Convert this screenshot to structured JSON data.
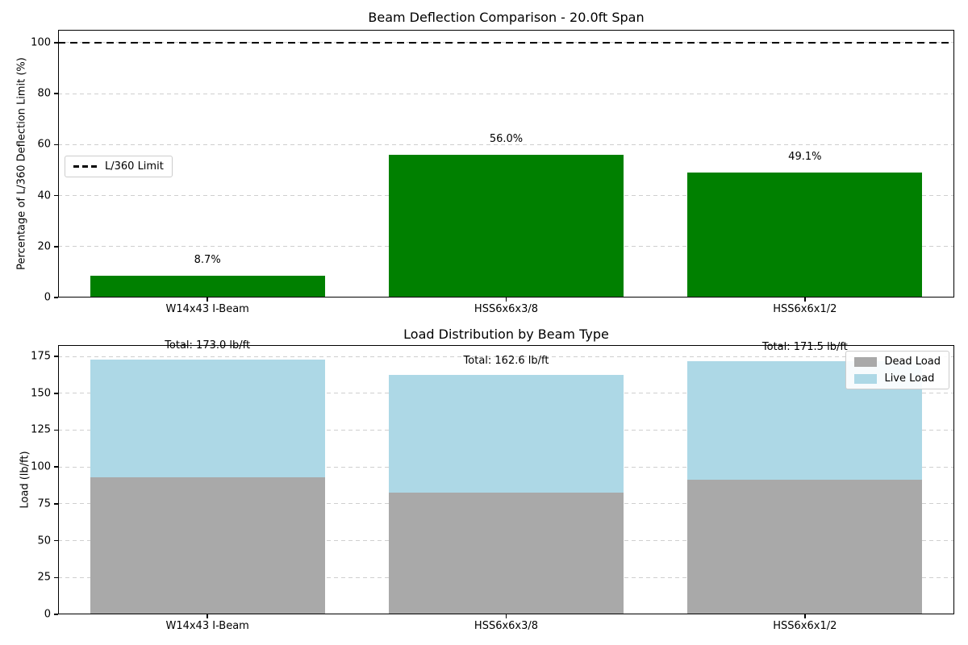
{
  "chart_data": [
    {
      "type": "bar",
      "title": "Beam Deflection Comparison - 20.0ft Span",
      "ylabel": "Percentage of L/360 Deflection Limit (%)",
      "categories": [
        "W14x43 I-Beam",
        "HSS6x6x3/8",
        "HSS6x6x1/2"
      ],
      "values": [
        8.7,
        56.0,
        49.1
      ],
      "value_labels": [
        "8.7%",
        "56.0%",
        "49.1%"
      ],
      "bar_color": "#008000",
      "ylim": [
        0,
        105
      ],
      "yticks": [
        0,
        20,
        40,
        60,
        80,
        100
      ],
      "grid": true,
      "legend_position": "center-left",
      "reference_line": {
        "value": 100,
        "label": "L/360 Limit",
        "color": "#000000",
        "linestyle": "dashed"
      }
    },
    {
      "type": "stacked-bar",
      "title": "Load Distribution by Beam Type",
      "ylabel": "Load (lb/ft)",
      "categories": [
        "W14x43 I-Beam",
        "HSS6x6x3/8",
        "HSS6x6x1/2"
      ],
      "series": [
        {
          "name": "Dead Load",
          "color": "#a9a9a9",
          "values": [
            93.0,
            82.6,
            91.5
          ]
        },
        {
          "name": "Live Load",
          "color": "#add8e6",
          "values": [
            80.0,
            80.0,
            80.0
          ]
        }
      ],
      "totals": [
        173.0,
        162.6,
        171.5
      ],
      "total_labels": [
        "Total: 173.0 lb/ft",
        "Total: 162.6 lb/ft",
        "Total: 171.5 lb/ft"
      ],
      "ylim": [
        0,
        182.7
      ],
      "yticks": [
        0,
        25,
        50,
        75,
        100,
        125,
        150,
        175
      ],
      "grid": true,
      "legend_position": "top-right"
    }
  ]
}
